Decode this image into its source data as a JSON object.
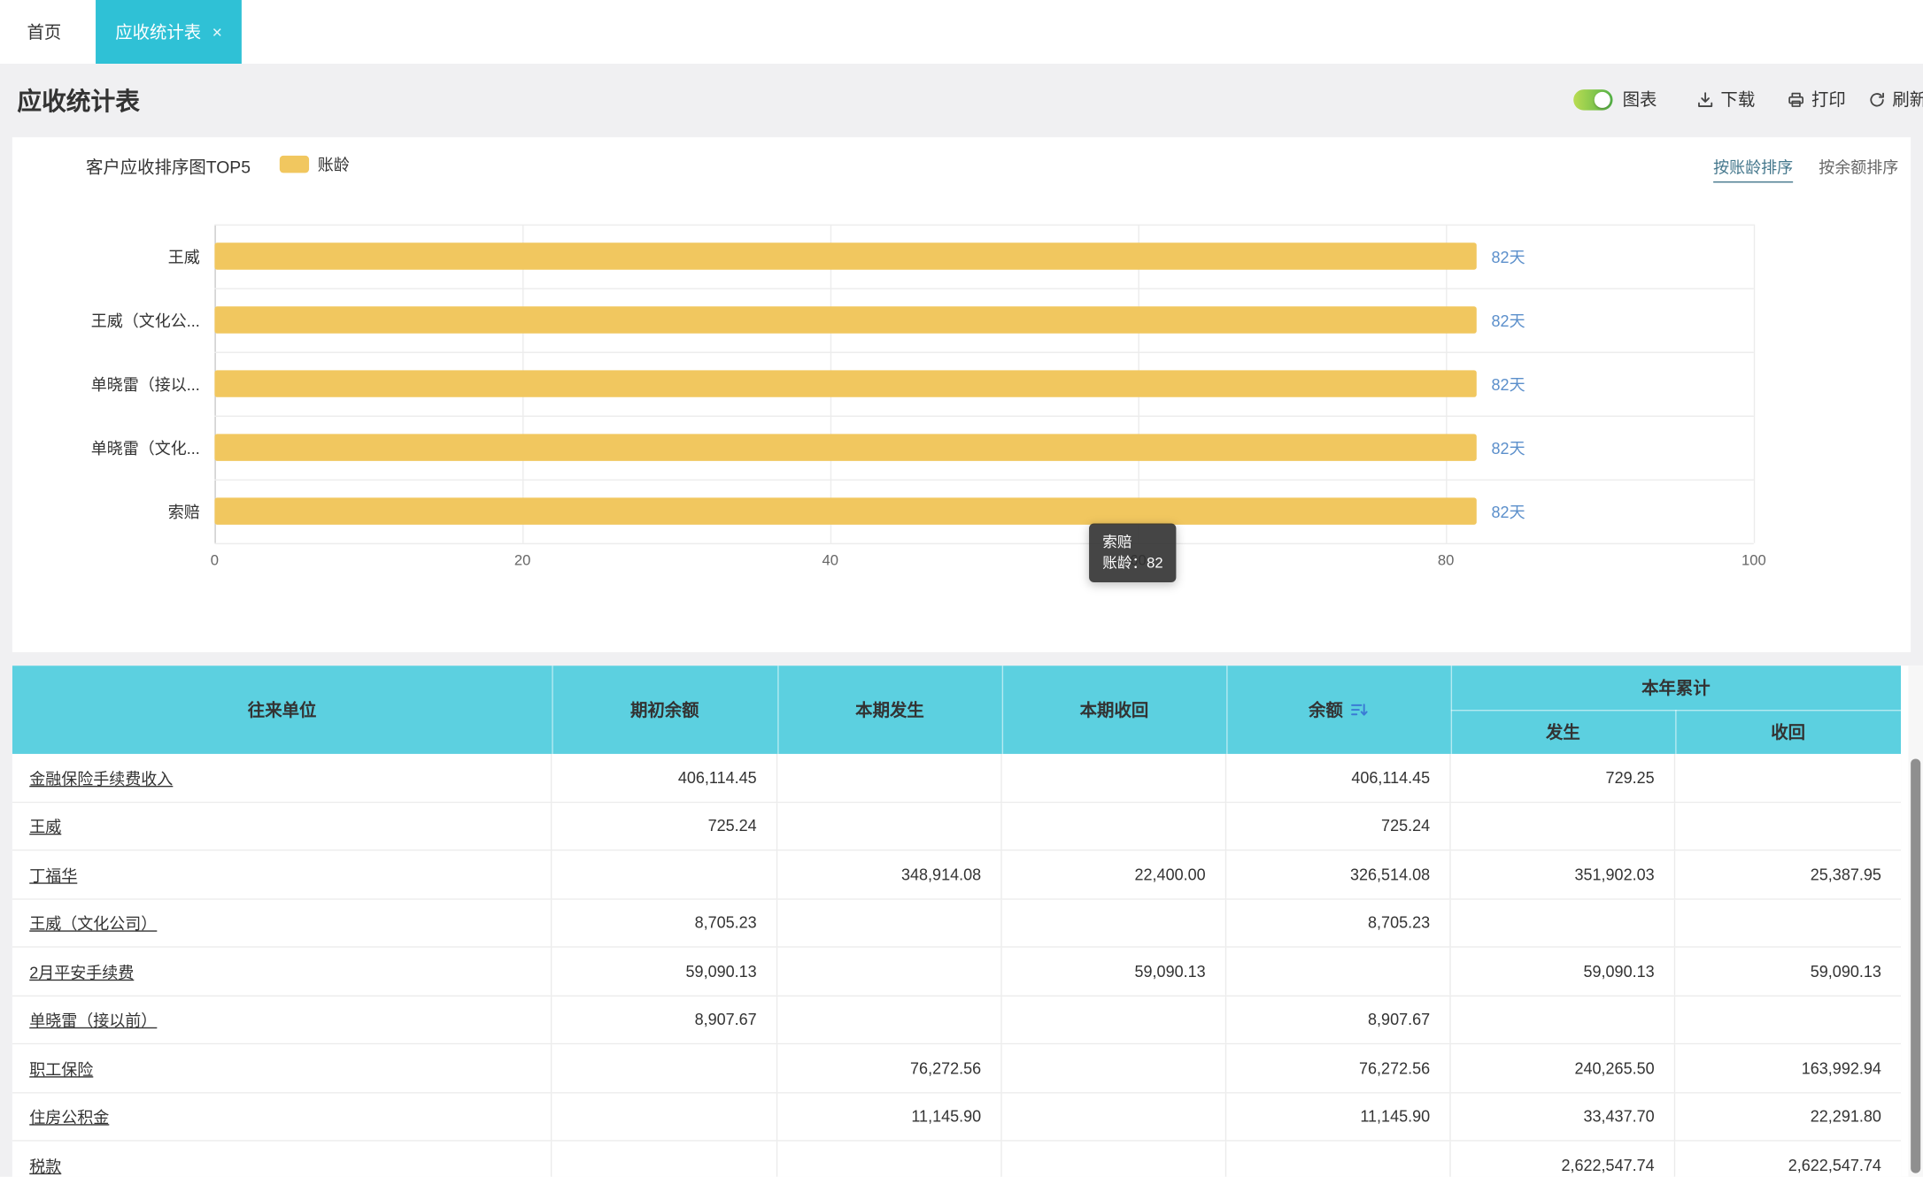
{
  "tabs": [
    {
      "label": "首页"
    },
    {
      "label": "应收统计表",
      "close_glyph": "×"
    }
  ],
  "header": {
    "title": "应收统计表",
    "toggle_label": "图表",
    "toggle_on": true,
    "download_label": "下载",
    "print_label": "打印",
    "refresh_label": "刷新"
  },
  "chart": {
    "title": "客户应收排序图TOP5",
    "legend_label": "账龄",
    "sort_by_age_label": "按账龄排序",
    "sort_by_balance_label": "按余额排序",
    "active_sort": "按账龄排序",
    "bar_color": "#F1C75F",
    "tab_color": "#2FC1D6",
    "table_header_color": "#5CD0E0",
    "tooltip": {
      "line1": "索赔",
      "line2": "账龄：82"
    }
  },
  "chart_data": {
    "type": "bar",
    "orientation": "horizontal",
    "title": "客户应收排序图TOP5",
    "legend": [
      "账龄"
    ],
    "legend_position": "top",
    "categories": [
      "王威",
      "王威（文化公...",
      "单晓雷（接以...",
      "单晓雷（文化...",
      "索赔"
    ],
    "series": [
      {
        "name": "账龄",
        "values": [
          82,
          82,
          82,
          82,
          82
        ]
      }
    ],
    "value_labels": [
      "82天",
      "82天",
      "82天",
      "82天",
      "82天"
    ],
    "value_unit": "天",
    "xlim": [
      0,
      100
    ],
    "xticks": [
      0,
      20,
      40,
      60,
      80,
      100
    ],
    "grid": true
  },
  "table": {
    "columns": [
      "往来单位",
      "期初余额",
      "本期发生",
      "本期收回",
      "余额"
    ],
    "group_header": {
      "label": "本年累计",
      "children": [
        "发生",
        "收回"
      ]
    },
    "rows": [
      [
        "金融保险手续费收入",
        "406,114.45",
        "",
        "",
        "406,114.45",
        "729.25",
        ""
      ],
      [
        "王威",
        "725.24",
        "",
        "",
        "725.24",
        "",
        ""
      ],
      [
        "丁福华",
        "",
        "348,914.08",
        "22,400.00",
        "326,514.08",
        "351,902.03",
        "25,387.95"
      ],
      [
        "王威（文化公司）",
        "8,705.23",
        "",
        "",
        "8,705.23",
        "",
        ""
      ],
      [
        "2月平安手续费",
        "59,090.13",
        "",
        "59,090.13",
        "",
        "59,090.13",
        "59,090.13"
      ],
      [
        "单晓雷（接以前）",
        "8,907.67",
        "",
        "",
        "8,907.67",
        "",
        ""
      ],
      [
        "职工保险",
        "",
        "76,272.56",
        "",
        "76,272.56",
        "240,265.50",
        "163,992.94"
      ],
      [
        "住房公积金",
        "",
        "11,145.90",
        "",
        "11,145.90",
        "33,437.70",
        "22,291.80"
      ],
      [
        "税款",
        "",
        "",
        "",
        "",
        "2,622,547.74",
        "2,622,547.74"
      ]
    ]
  }
}
